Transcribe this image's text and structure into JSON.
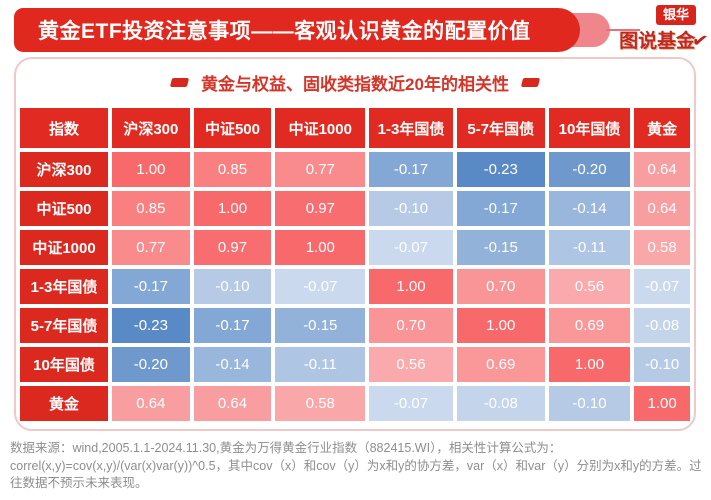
{
  "header": {
    "banner_title": "黄金ETF投资注意事项——客观认识黄金的配置价值",
    "logo": {
      "badge": "银华",
      "series": "图说基金",
      "checkmark": "✔"
    }
  },
  "subtitle": "黄金与权益、固收类指数近20年的相关性",
  "table": {
    "corner_label": "指数"
  },
  "chart_data": {
    "type": "heatmap",
    "title": "黄金与权益、固收类指数近20年的相关性",
    "categories": [
      "沪深300",
      "中证500",
      "中证1000",
      "1-3年国债",
      "5-7年国债",
      "10年国债",
      "黄金"
    ],
    "matrix": [
      [
        1.0,
        0.85,
        0.77,
        -0.17,
        -0.23,
        -0.2,
        0.64
      ],
      [
        0.85,
        1.0,
        0.97,
        -0.1,
        -0.17,
        -0.14,
        0.64
      ],
      [
        0.77,
        0.97,
        1.0,
        -0.07,
        -0.15,
        -0.11,
        0.58
      ],
      [
        -0.17,
        -0.1,
        -0.07,
        1.0,
        0.7,
        0.56,
        -0.07
      ],
      [
        -0.23,
        -0.17,
        -0.15,
        0.7,
        1.0,
        0.69,
        -0.08
      ],
      [
        -0.2,
        -0.14,
        -0.11,
        0.56,
        0.69,
        1.0,
        -0.1
      ],
      [
        0.64,
        0.64,
        0.58,
        -0.07,
        -0.08,
        -0.1,
        1.0
      ]
    ],
    "value_format": "0.00",
    "legend": "none",
    "colorscale": {
      "domain_min": -0.23,
      "domain_mid": 0,
      "domain_max": 1.0,
      "min_color": "#5a8ac6",
      "mid_color": "#fcfcff",
      "max_color": "#f8696b"
    }
  },
  "footer": {
    "note": "数据来源：wind,2005.1.1-2024.11.30,黄金为万得黄金行业指数（882415.WI），相关性计算公式为：correl(x,y)=cov(x,y)/(var(x)var(y))^0.5，其中cov（x）和cov（y）为x和y的协方差，var（x）和var（y）分别为x和y的方差。过往数据不预示未来表现。"
  },
  "colors": {
    "brand_red": "#e1281e",
    "banner_echo_pink": "#ef868c",
    "table_header_red": "#e12b22",
    "row_label_red": "#dc2920",
    "subtitle_red": "#d43529",
    "card_border_pink": "#f1c8c8",
    "footer_gray": "#8e8e8e",
    "cell_text_white": "#ffffff"
  }
}
